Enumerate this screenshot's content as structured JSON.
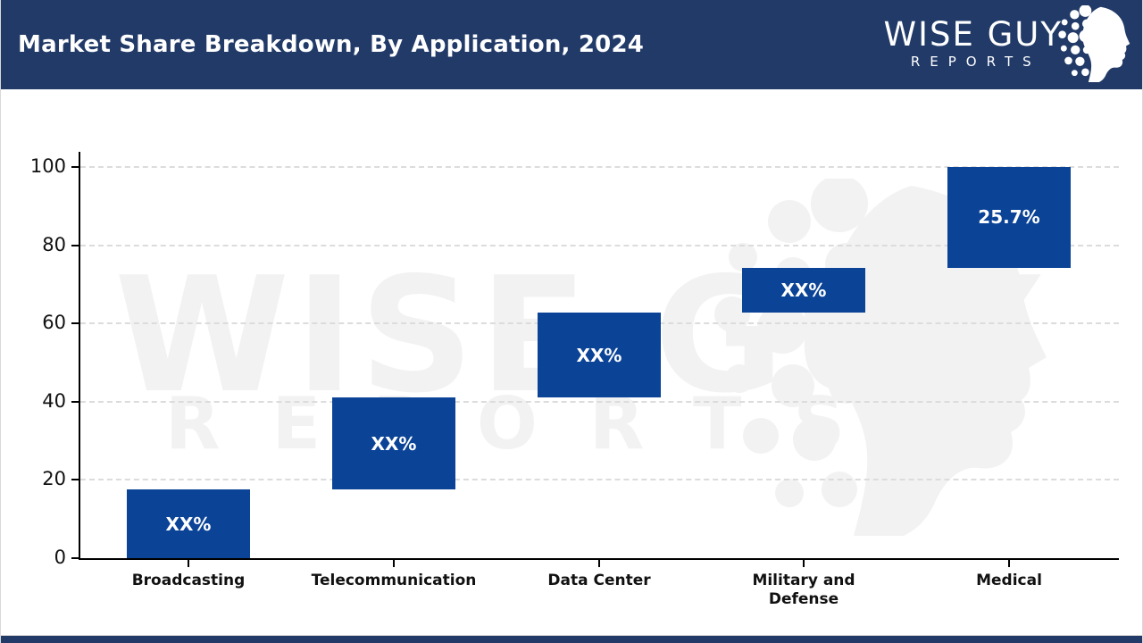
{
  "header": {
    "title": "Market Share Breakdown, By Application, 2024",
    "logo": {
      "line1": "WISE GUY",
      "line2": "REPORTS"
    }
  },
  "watermark": {
    "line1": "WISE GUY",
    "line2": "REPORTS"
  },
  "chart_data": {
    "type": "bar",
    "subtype": "waterfall-floating-bars",
    "title": "Market Share Breakdown, By Application, 2024",
    "categories": [
      "Broadcasting",
      "Telecommunication",
      "Data Center",
      "Military and Defense",
      "Medical"
    ],
    "tick_labels": [
      "Broadcasting",
      "Telecommunication",
      "Data Center",
      "Military and\nDefense",
      "Medical"
    ],
    "series": [
      {
        "name": "Market Share (%)",
        "segments": [
          {
            "category": "Broadcasting",
            "start": 0,
            "end": 17.5,
            "value_label": "XX%"
          },
          {
            "category": "Telecommunication",
            "start": 17.5,
            "end": 41.0,
            "value_label": "XX%"
          },
          {
            "category": "Data Center",
            "start": 41.0,
            "end": 62.8,
            "value_label": "XX%"
          },
          {
            "category": "Military and Defense",
            "start": 62.8,
            "end": 74.3,
            "value_label": "XX%"
          },
          {
            "category": "Medical",
            "start": 74.3,
            "end": 100,
            "value_label": "25.7%"
          }
        ]
      }
    ],
    "yticks": [
      0,
      20,
      40,
      60,
      80,
      100
    ],
    "ytick_labels": [
      "0",
      "20",
      "40",
      "60",
      "80",
      "100"
    ],
    "ylim": [
      0,
      100
    ],
    "xlabel": "",
    "ylabel": "",
    "grid": "horizontal dashed",
    "legend": "none"
  },
  "colors": {
    "header_bg": "#213a68",
    "footer_bg": "#213a68",
    "bar_fill": "#0b4397",
    "bar_label": "#ffffff",
    "gridline": "#dcdcdc",
    "axis": "#000000",
    "watermark": "#f2f2f2"
  }
}
